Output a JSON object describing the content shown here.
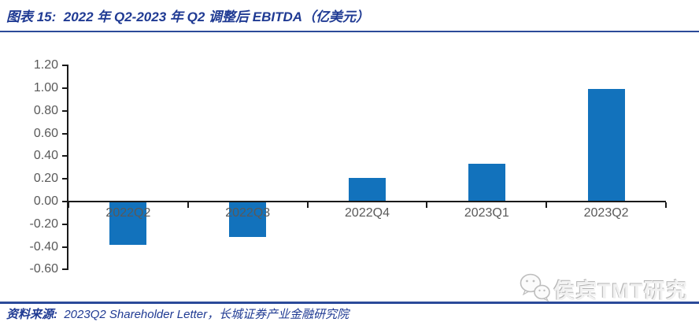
{
  "header": {
    "title": "图表 15:  2022 年 Q2-2023 年 Q2 调整后 EBITDA（亿美元）"
  },
  "chart_data": {
    "type": "bar",
    "title": "2022 年 Q2-2023 年 Q2 调整后 EBITDA（亿美元）",
    "categories": [
      "2022Q2",
      "2022Q3",
      "2022Q4",
      "2023Q1",
      "2023Q2"
    ],
    "values": [
      -0.38,
      -0.31,
      0.21,
      0.33,
      0.99
    ],
    "xlabel": "",
    "ylabel": "",
    "ylim": [
      -0.6,
      1.2
    ],
    "y_tick_step": 0.2,
    "y_tick_labels": [
      "1.20",
      "1.00",
      "0.80",
      "0.60",
      "0.40",
      "0.20",
      "0.00",
      "-0.20",
      "-0.40",
      "-0.60"
    ],
    "grid": false,
    "legend_position": "none",
    "bar_color": "#1272BC"
  },
  "footer": {
    "source_label": "资料来源:  ",
    "source_text": "2023Q2 Shareholder Letter，长城证券产业金融研究院"
  },
  "watermark": {
    "icon": "wechat-icon",
    "text": "侯宾TMT研究"
  },
  "colors": {
    "navy": "#1F3A93",
    "rule": "#2B4A99",
    "bar": "#1272BC",
    "axis": "#1A1A1A",
    "gray": "#595959"
  }
}
